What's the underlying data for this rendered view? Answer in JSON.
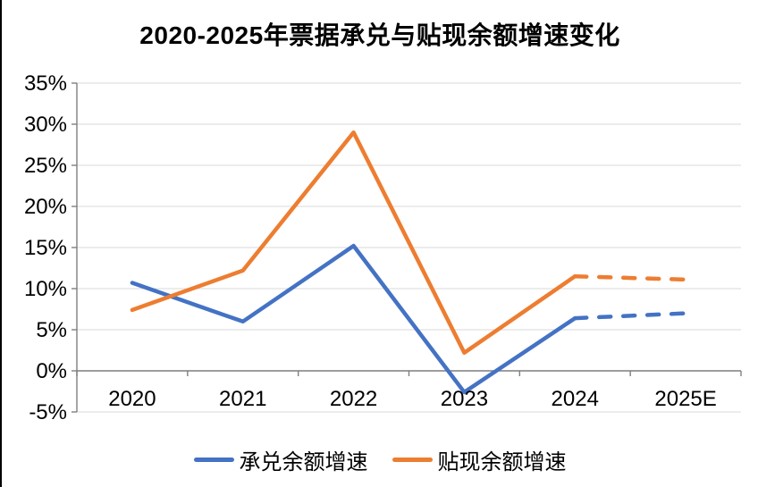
{
  "chart_data": {
    "type": "line",
    "title": "2020-2025年票据承兑与贴现余额增速变化",
    "categories": [
      "2020",
      "2021",
      "2022",
      "2023",
      "2024",
      "2025E"
    ],
    "series": [
      {
        "name": "承兑余额增速",
        "color": "#4472C4",
        "values": [
          10.7,
          6.0,
          15.2,
          -2.6,
          6.4,
          7.0
        ],
        "solid_until_category": "2024",
        "dashed_after": "2024"
      },
      {
        "name": "贴现余额增速",
        "color": "#ED7D31",
        "values": [
          7.4,
          12.2,
          29.0,
          2.2,
          11.5,
          11.1
        ],
        "solid_until_category": "2024",
        "dashed_after": "2024"
      }
    ],
    "unit": "%",
    "ylim": [
      -5,
      35
    ],
    "yticks": [
      {
        "value": 35,
        "label": "35%"
      },
      {
        "value": 30,
        "label": "30%"
      },
      {
        "value": 25,
        "label": "25%"
      },
      {
        "value": 20,
        "label": "20%"
      },
      {
        "value": 15,
        "label": "15%"
      },
      {
        "value": 10,
        "label": "10%"
      },
      {
        "value": 5,
        "label": "5%"
      },
      {
        "value": 0,
        "label": "0%"
      },
      {
        "value": -5,
        "label": "-5%"
      }
    ],
    "grid": true,
    "legend_position": "bottom",
    "colors": {
      "axis": "#7F7F7F",
      "gridline": "#D9D9D9",
      "text": "#000000",
      "background": "#FFFFFF"
    }
  }
}
